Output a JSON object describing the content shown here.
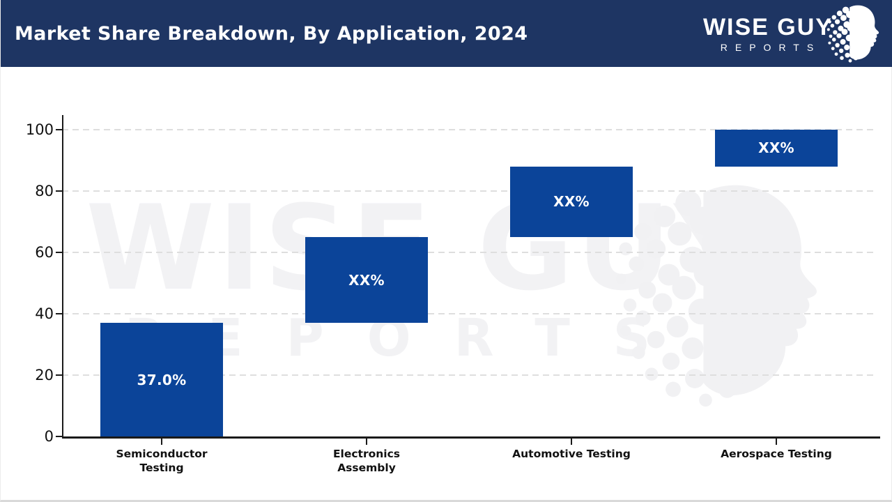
{
  "header": {
    "title": "Market Share Breakdown, By Application, 2024",
    "logo": {
      "name": "WISE GUY",
      "sub": "REPORTS"
    }
  },
  "watermark": {
    "line1": "WISE GUY",
    "line2": "REPORTS"
  },
  "chart_data": {
    "type": "bar",
    "variant": "floating-segment-waterfall",
    "title": "Market Share Breakdown, By Application, 2024",
    "categories": [
      "Semiconductor Testing",
      "Electronics Assembly",
      "Automotive Testing",
      "Aerospace Testing"
    ],
    "category_label_lines": [
      [
        "Semiconductor",
        "Testing"
      ],
      [
        "Electronics",
        "Assembly"
      ],
      [
        "Automotive Testing"
      ],
      [
        "Aerospace Testing"
      ]
    ],
    "series": [
      {
        "name": "Market share (%)",
        "segments": [
          {
            "category": "Semiconductor Testing",
            "start": 0,
            "end": 37,
            "label": "37.0%"
          },
          {
            "category": "Electronics Assembly",
            "start": 37,
            "end": 65,
            "label": "XX%"
          },
          {
            "category": "Automotive Testing",
            "start": 65,
            "end": 88,
            "label": "XX%"
          },
          {
            "category": "Aerospace Testing",
            "start": 88,
            "end": 100,
            "label": "XX%"
          }
        ]
      }
    ],
    "ylim": [
      0,
      100
    ],
    "yticks": [
      0,
      20,
      40,
      60,
      80,
      100
    ],
    "xlabel": "",
    "ylabel": "",
    "grid": "horizontal-dashed",
    "legend_position": "none"
  },
  "colors": {
    "header_bg": "#1e3563",
    "bar": "#0b4499",
    "bar_label": "#ffffff",
    "axis": "#1a1a1a",
    "gridline": "#dedede",
    "watermark": "#f2f2f4",
    "page_bg": "#ffffff"
  }
}
